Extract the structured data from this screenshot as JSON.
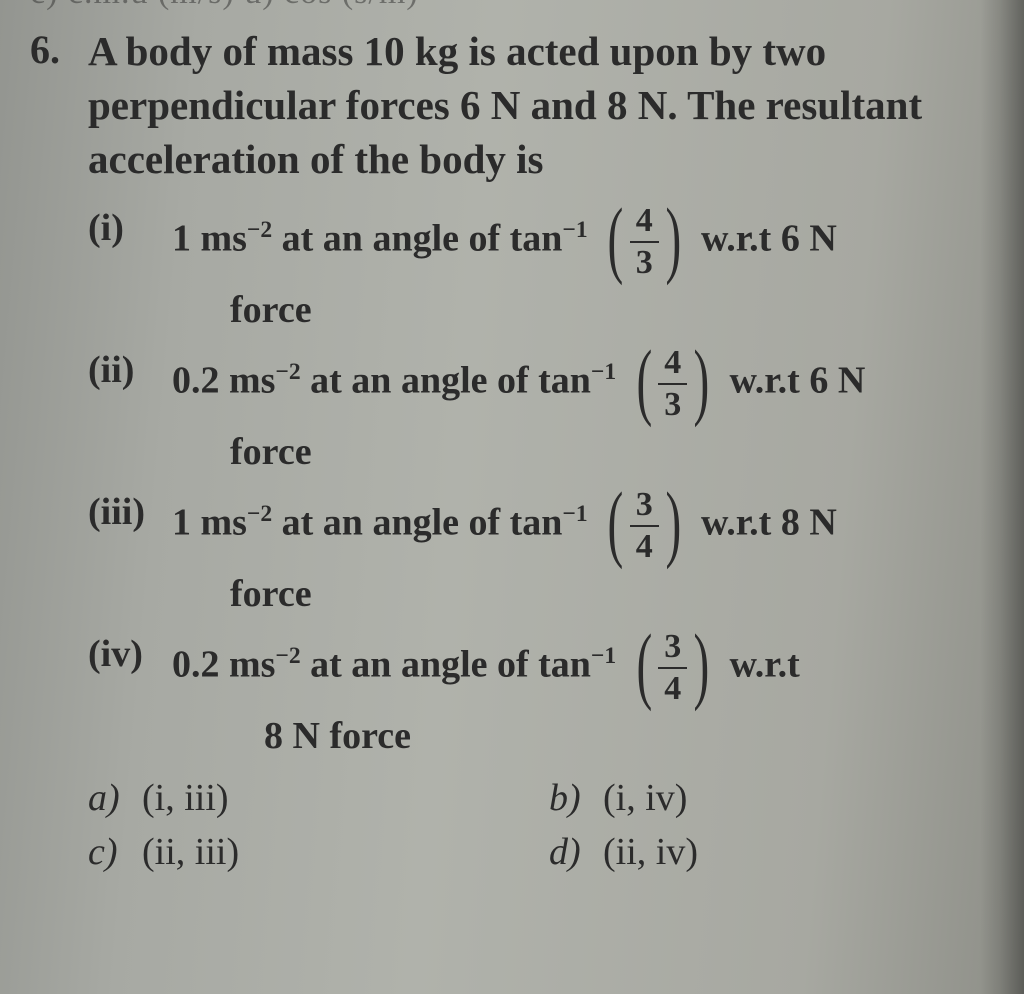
{
  "cutoff_top": "c)  c.m.u     (m/s)                     u)  cos     (s/m)",
  "question": {
    "number": "6.",
    "text": "A body of mass 10 kg is acted upon by two perpendicular forces 6 N and 8 N. The resultant acceleration of the body is"
  },
  "statements": [
    {
      "label": "(i)",
      "pre": "1 ms",
      "exp": "−2",
      "mid": " at an angle of tan",
      "exp2": "−1",
      "frac_top": "4",
      "frac_bot": "3",
      "post": " w.r.t 6 N",
      "force": "force"
    },
    {
      "label": "(ii)",
      "pre": "0.2 ms",
      "exp": "−2",
      "mid": " at an angle of tan",
      "exp2": "−1",
      "frac_top": "4",
      "frac_bot": "3",
      "post": " w.r.t 6 N",
      "force": "force"
    },
    {
      "label": "(iii)",
      "pre": "1 ms",
      "exp": "−2",
      "mid": " at an angle of tan",
      "exp2": "−1",
      "frac_top": "3",
      "frac_bot": "4",
      "post": " w.r.t 8 N",
      "force": "force"
    },
    {
      "label": "(iv)",
      "pre": "0.2 ms",
      "exp": "−2",
      "mid": " at an angle of tan",
      "exp2": "−1",
      "frac_top": "3",
      "frac_bot": "4",
      "post": " w.r.t",
      "force": "8 N force"
    }
  ],
  "answers": {
    "a": {
      "label": "a)",
      "text": "(i, iii)"
    },
    "b": {
      "label": "b)",
      "text": "(i, iv)"
    },
    "c": {
      "label": "c)",
      "text": "(ii, iii)"
    },
    "d": {
      "label": "d)",
      "text": "(ii, iv)"
    }
  },
  "style": {
    "text_color": "#2b2b2b",
    "background_base": "#a4a5a0",
    "question_fontsize": 41,
    "statement_fontsize": 38,
    "answer_fontsize": 38
  }
}
